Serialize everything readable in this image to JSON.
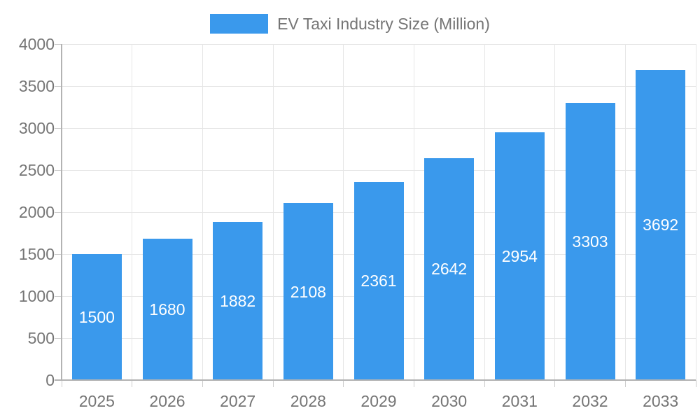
{
  "legend": {
    "label": "EV Taxi Industry Size (Million)",
    "swatch_icon": "legend-color-swatch"
  },
  "colors": {
    "bar": "#3A99EC",
    "axis_line": "#b3b3b3",
    "gridline": "#e6e6e6",
    "tick": "#cccccc",
    "axis_text": "#757575",
    "bar_label_text": "#ffffff",
    "background": "#ffffff"
  },
  "chart_data": {
    "type": "bar",
    "title": "EV Taxi Industry Size (Million)",
    "categories": [
      "2025",
      "2026",
      "2027",
      "2028",
      "2029",
      "2030",
      "2031",
      "2032",
      "2033"
    ],
    "values": [
      1500,
      1680,
      1882,
      2108,
      2361,
      2642,
      2954,
      3303,
      3692
    ],
    "series_name": "EV Taxi Industry Size (Million)",
    "xlabel": "",
    "ylabel": "",
    "ylim": [
      0,
      4000
    ],
    "ytick_step": 500,
    "yticks": [
      0,
      500,
      1000,
      1500,
      2000,
      2500,
      3000,
      3500,
      4000
    ],
    "grid": true,
    "legend_position": "top-center",
    "bar_value_labels": "inside-centered"
  }
}
